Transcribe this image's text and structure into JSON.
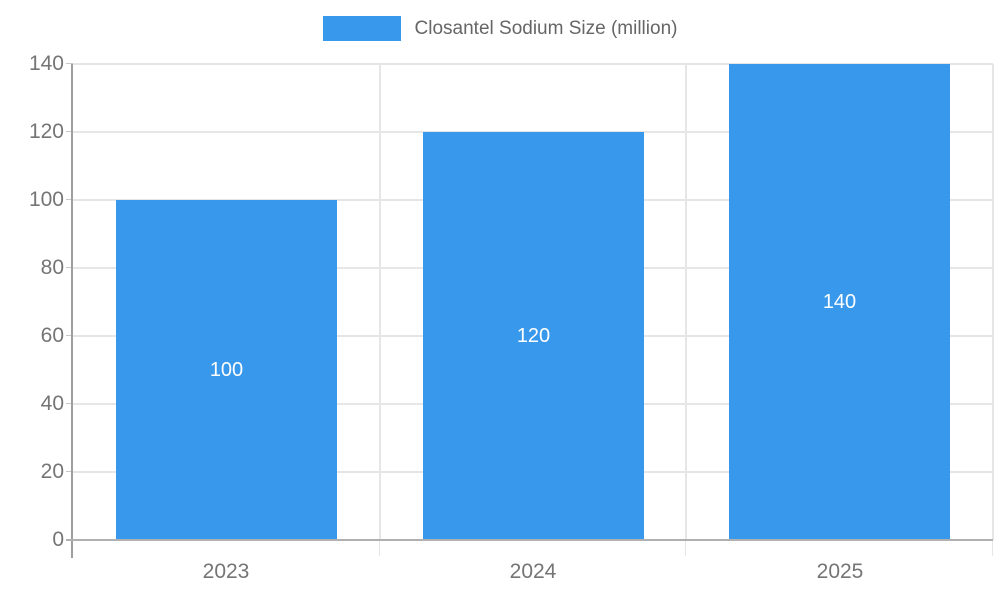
{
  "chart_data": {
    "type": "bar",
    "title": "",
    "categories": [
      "2023",
      "2024",
      "2025"
    ],
    "series": [
      {
        "name": "Closantel Sodium Size (million)",
        "values": [
          100,
          120,
          140
        ]
      }
    ],
    "data_labels": [
      "100",
      "120",
      "140"
    ],
    "xlabel": "",
    "ylabel": "",
    "ylim": [
      0,
      140
    ],
    "yticks": [
      0,
      20,
      40,
      60,
      80,
      100,
      120,
      140
    ],
    "grid": true,
    "legend": {
      "position": "top",
      "entries": [
        "Closantel Sodium Size (million)"
      ]
    },
    "colors": {
      "bar": "#3898ec",
      "data_label": "#ffffff",
      "axis_text": "#757575",
      "legend_text": "#666666",
      "gridline": "#e6e6e6",
      "y_axis_line": "#9e9e9e",
      "baseline": "#b0b0b0",
      "tick": "#c9c9c9"
    }
  }
}
